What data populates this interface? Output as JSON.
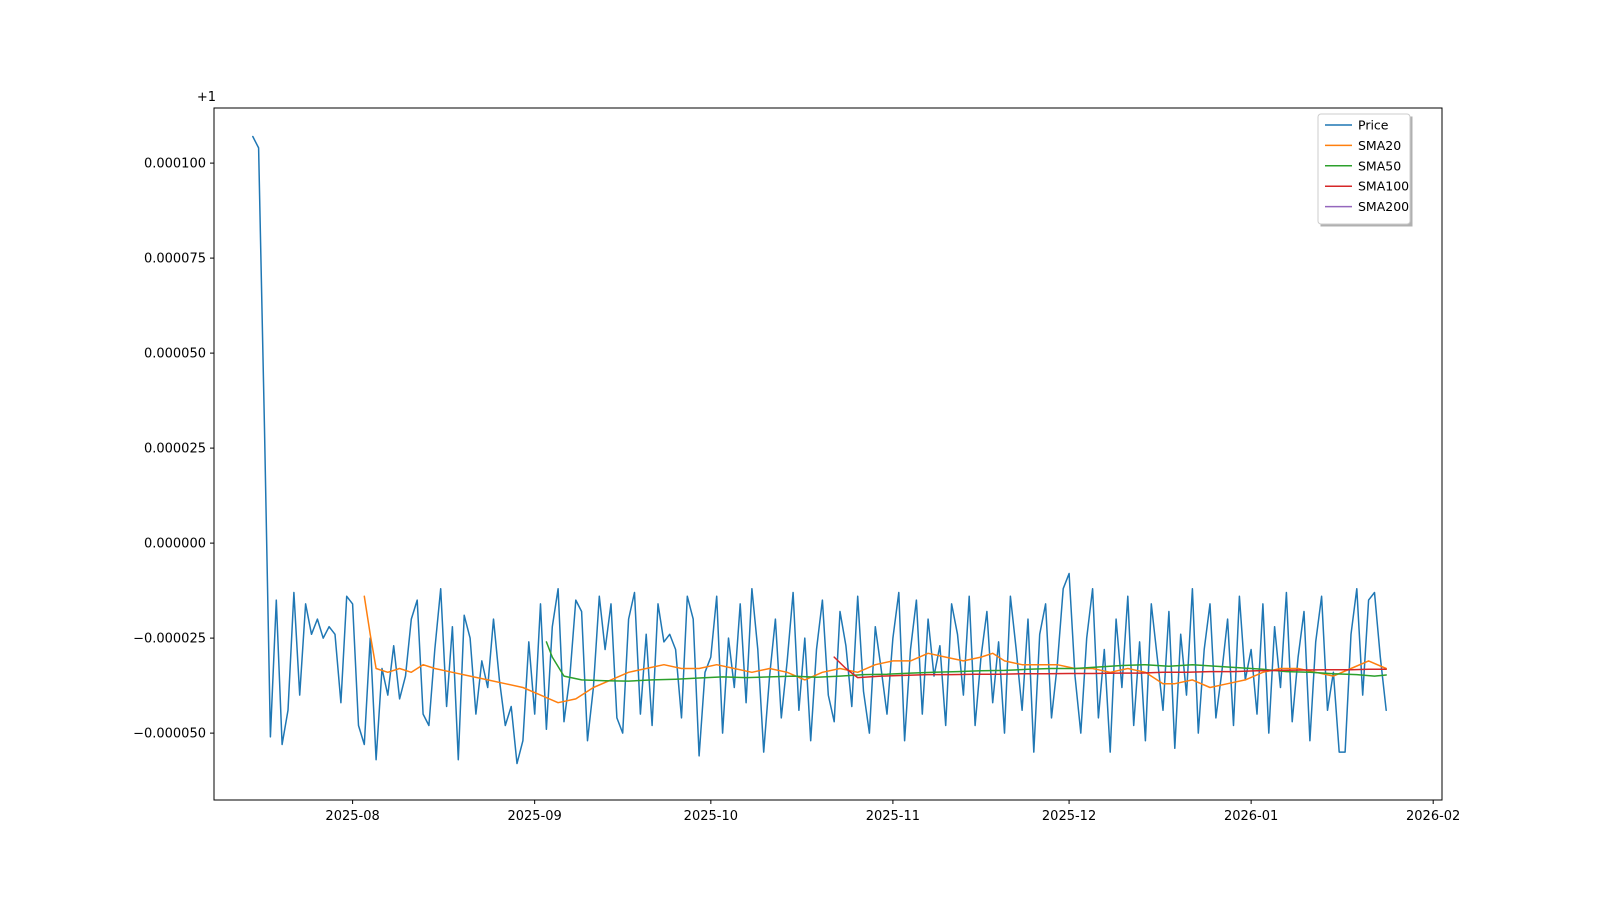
{
  "chart_data": {
    "type": "line",
    "title": "",
    "offset_text": "+1",
    "grid": false,
    "x_axis": {
      "unit": "date-days",
      "start_date": "2025-07-15",
      "xlim_days": [
        -6.6,
        202.5
      ],
      "ticks": [
        {
          "d": 17,
          "label": "2025-08"
        },
        {
          "d": 48,
          "label": "2025-09"
        },
        {
          "d": 78,
          "label": "2025-10"
        },
        {
          "d": 109,
          "label": "2025-11"
        },
        {
          "d": 139,
          "label": "2025-12"
        },
        {
          "d": 170,
          "label": "2026-01"
        },
        {
          "d": 201,
          "label": "2026-02"
        }
      ]
    },
    "y_axis": {
      "offset_base": 1.0,
      "unit": "micro (1e-6) offset from 1.0",
      "ylim_micro": [
        -67.6,
        114.5
      ],
      "ticks": [
        {
          "v": 100,
          "label": "0.000100"
        },
        {
          "v": 75,
          "label": "0.000075"
        },
        {
          "v": 50,
          "label": "0.000050"
        },
        {
          "v": 25,
          "label": "0.000025"
        },
        {
          "v": 0,
          "label": "0.000000"
        },
        {
          "v": -25,
          "label": "−0.000025"
        },
        {
          "v": -50,
          "label": "−0.000050"
        }
      ]
    },
    "series": [
      {
        "name": "Price",
        "color": "#1f77b4",
        "linewidth": 1.5,
        "kind": "daily_values",
        "start_day": 0,
        "values_micro": [
          107,
          104,
          30,
          -51,
          -15,
          -53,
          -44,
          -13,
          -40,
          -16,
          -24,
          -20,
          -25,
          -22,
          -24,
          -42,
          -14,
          -16,
          -48,
          -53,
          -25,
          -57,
          -33,
          -40,
          -27,
          -41,
          -35,
          -20,
          -15,
          -45,
          -48,
          -28,
          -12,
          -43,
          -22,
          -57,
          -19,
          -25,
          -45,
          -31,
          -38,
          -20,
          -36,
          -48,
          -43,
          -58,
          -52,
          -26,
          -45,
          -16,
          -49,
          -22,
          -12,
          -47,
          -35,
          -15,
          -18,
          -52,
          -38,
          -14,
          -28,
          -16,
          -46,
          -50,
          -20,
          -13,
          -45,
          -24,
          -48,
          -16,
          -26,
          -24,
          -28,
          -46,
          -14,
          -20,
          -56,
          -34,
          -30,
          -14,
          -50,
          -25,
          -38,
          -16,
          -42,
          -12,
          -28,
          -55,
          -35,
          -20,
          -46,
          -31,
          -13,
          -44,
          -25,
          -52,
          -28,
          -15,
          -40,
          -47,
          -18,
          -27,
          -43,
          -14,
          -39,
          -50,
          -22,
          -33,
          -45,
          -25,
          -13,
          -52,
          -28,
          -15,
          -45,
          -20,
          -35,
          -27,
          -48,
          -16,
          -24,
          -40,
          -14,
          -48,
          -30,
          -18,
          -42,
          -26,
          -50,
          -14,
          -28,
          -44,
          -20,
          -55,
          -24,
          -16,
          -46,
          -32,
          -12,
          -8,
          -35,
          -50,
          -25,
          -12,
          -46,
          -28,
          -55,
          -20,
          -38,
          -14,
          -48,
          -26,
          -52,
          -16,
          -30,
          -44,
          -18,
          -54,
          -24,
          -40,
          -12,
          -50,
          -28,
          -16,
          -46,
          -34,
          -20,
          -48,
          -14,
          -36,
          -28,
          -45,
          -16,
          -50,
          -22,
          -38,
          -13,
          -47,
          -30,
          -18,
          -52,
          -26,
          -14,
          -44,
          -34,
          -55,
          -55,
          -24,
          -12,
          -40,
          -15,
          -13,
          -30,
          -44
        ]
      },
      {
        "name": "SMA20",
        "color": "#ff7f0e",
        "linewidth": 1.5,
        "kind": "sampled_points",
        "points_micro": [
          [
            19,
            -14
          ],
          [
            20,
            -24
          ],
          [
            21,
            -33
          ],
          [
            23,
            -34
          ],
          [
            25,
            -33
          ],
          [
            27,
            -34
          ],
          [
            29,
            -32
          ],
          [
            31,
            -33
          ],
          [
            34,
            -34
          ],
          [
            37,
            -35
          ],
          [
            40,
            -36
          ],
          [
            43,
            -37
          ],
          [
            46,
            -38
          ],
          [
            49,
            -40
          ],
          [
            52,
            -42
          ],
          [
            55,
            -41
          ],
          [
            58,
            -38
          ],
          [
            61,
            -36
          ],
          [
            64,
            -34
          ],
          [
            67,
            -33
          ],
          [
            70,
            -32
          ],
          [
            73,
            -33
          ],
          [
            76,
            -33
          ],
          [
            79,
            -32
          ],
          [
            82,
            -33
          ],
          [
            85,
            -34
          ],
          [
            88,
            -33
          ],
          [
            91,
            -34
          ],
          [
            94,
            -36
          ],
          [
            97,
            -34
          ],
          [
            100,
            -33
          ],
          [
            103,
            -34
          ],
          [
            106,
            -32
          ],
          [
            109,
            -31
          ],
          [
            112,
            -31
          ],
          [
            115,
            -29
          ],
          [
            118,
            -30
          ],
          [
            121,
            -31
          ],
          [
            124,
            -30
          ],
          [
            126,
            -29
          ],
          [
            128,
            -31
          ],
          [
            131,
            -32
          ],
          [
            134,
            -32
          ],
          [
            137,
            -32
          ],
          [
            140,
            -33
          ],
          [
            143,
            -33
          ],
          [
            146,
            -34
          ],
          [
            149,
            -33
          ],
          [
            152,
            -34
          ],
          [
            155,
            -37
          ],
          [
            157,
            -37
          ],
          [
            160,
            -36
          ],
          [
            163,
            -38
          ],
          [
            166,
            -37
          ],
          [
            169,
            -36
          ],
          [
            172,
            -34
          ],
          [
            175,
            -33
          ],
          [
            178,
            -33
          ],
          [
            181,
            -34
          ],
          [
            184,
            -35
          ],
          [
            187,
            -33
          ],
          [
            190,
            -31
          ],
          [
            193,
            -33
          ]
        ]
      },
      {
        "name": "SMA50",
        "color": "#2ca02c",
        "linewidth": 1.5,
        "kind": "sampled_points",
        "points_micro": [
          [
            50,
            -26
          ],
          [
            51,
            -30
          ],
          [
            53,
            -35
          ],
          [
            56,
            -36
          ],
          [
            60,
            -36.2
          ],
          [
            64,
            -36.3
          ],
          [
            68,
            -36
          ],
          [
            72,
            -35.8
          ],
          [
            76,
            -35.5
          ],
          [
            80,
            -35.2
          ],
          [
            84,
            -35.4
          ],
          [
            88,
            -35.2
          ],
          [
            92,
            -35
          ],
          [
            96,
            -35.3
          ],
          [
            100,
            -35
          ],
          [
            104,
            -34.6
          ],
          [
            108,
            -34.5
          ],
          [
            112,
            -34.2
          ],
          [
            116,
            -34
          ],
          [
            120,
            -33.8
          ],
          [
            124,
            -33.6
          ],
          [
            128,
            -33.5
          ],
          [
            132,
            -33.2
          ],
          [
            136,
            -33
          ],
          [
            140,
            -33
          ],
          [
            144,
            -32.6
          ],
          [
            148,
            -32.2
          ],
          [
            152,
            -32
          ],
          [
            156,
            -32.4
          ],
          [
            160,
            -32
          ],
          [
            164,
            -32.4
          ],
          [
            168,
            -32.8
          ],
          [
            172,
            -33.2
          ],
          [
            176,
            -33.8
          ],
          [
            180,
            -34
          ],
          [
            184,
            -34.4
          ],
          [
            188,
            -34.6
          ],
          [
            191,
            -35
          ],
          [
            193,
            -34.7
          ]
        ]
      },
      {
        "name": "SMA100",
        "color": "#d62728",
        "linewidth": 1.5,
        "kind": "sampled_points",
        "points_micro": [
          [
            99,
            -30
          ],
          [
            101,
            -33
          ],
          [
            103,
            -35.4
          ],
          [
            107,
            -35
          ],
          [
            111,
            -34.8
          ],
          [
            115,
            -34.6
          ],
          [
            119,
            -34.6
          ],
          [
            123,
            -34.5
          ],
          [
            127,
            -34.5
          ],
          [
            131,
            -34.4
          ],
          [
            135,
            -34.4
          ],
          [
            139,
            -34.3
          ],
          [
            143,
            -34.3
          ],
          [
            147,
            -34.2
          ],
          [
            151,
            -34.2
          ],
          [
            155,
            -34
          ],
          [
            159,
            -34
          ],
          [
            163,
            -33.8
          ],
          [
            167,
            -33.8
          ],
          [
            171,
            -33.6
          ],
          [
            175,
            -33.5
          ],
          [
            179,
            -33.4
          ],
          [
            183,
            -33.3
          ],
          [
            187,
            -33.3
          ],
          [
            190,
            -33.2
          ],
          [
            193,
            -33.2
          ]
        ]
      },
      {
        "name": "SMA200",
        "color": "#9467bd",
        "linewidth": 1.5,
        "kind": "sampled_points",
        "points_micro": []
      }
    ],
    "legend": {
      "position": "upper right",
      "entries": [
        {
          "label": "Price",
          "color": "#1f77b4"
        },
        {
          "label": "SMA20",
          "color": "#ff7f0e"
        },
        {
          "label": "SMA50",
          "color": "#2ca02c"
        },
        {
          "label": "SMA100",
          "color": "#d62728"
        },
        {
          "label": "SMA200",
          "color": "#9467bd"
        }
      ]
    }
  }
}
